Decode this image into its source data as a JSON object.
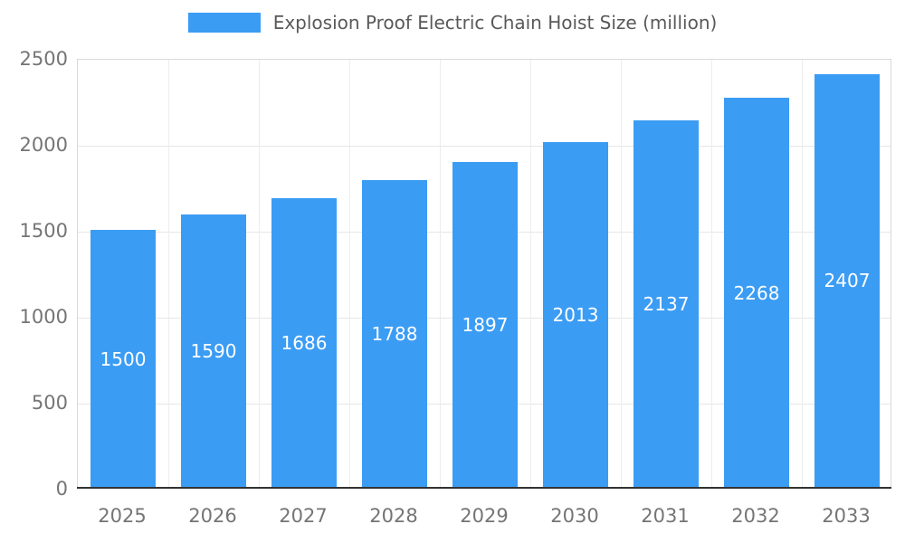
{
  "chart_data": {
    "type": "bar",
    "title": "Explosion Proof Electric Chain Hoist Size (million)",
    "categories": [
      "2025",
      "2026",
      "2027",
      "2028",
      "2029",
      "2030",
      "2031",
      "2032",
      "2033"
    ],
    "values": [
      1500,
      1590,
      1686,
      1788,
      1897,
      2013,
      2137,
      2268,
      2407
    ],
    "xlabel": "",
    "ylabel": "",
    "ylim": [
      0,
      2500
    ],
    "yticks": [
      0,
      500,
      1000,
      1500,
      2000,
      2500
    ],
    "grid": true,
    "legend_position": "top",
    "value_labels": "inside-middle",
    "colors": {
      "bar": "#3b9cf4",
      "value_label": "#ffffff",
      "axis_text": "#757575",
      "title_text": "#595959",
      "gridline": "#e6e6e6",
      "plot_border": "#d9d9d9",
      "axis_line": "#333333",
      "background": "#ffffff"
    }
  }
}
